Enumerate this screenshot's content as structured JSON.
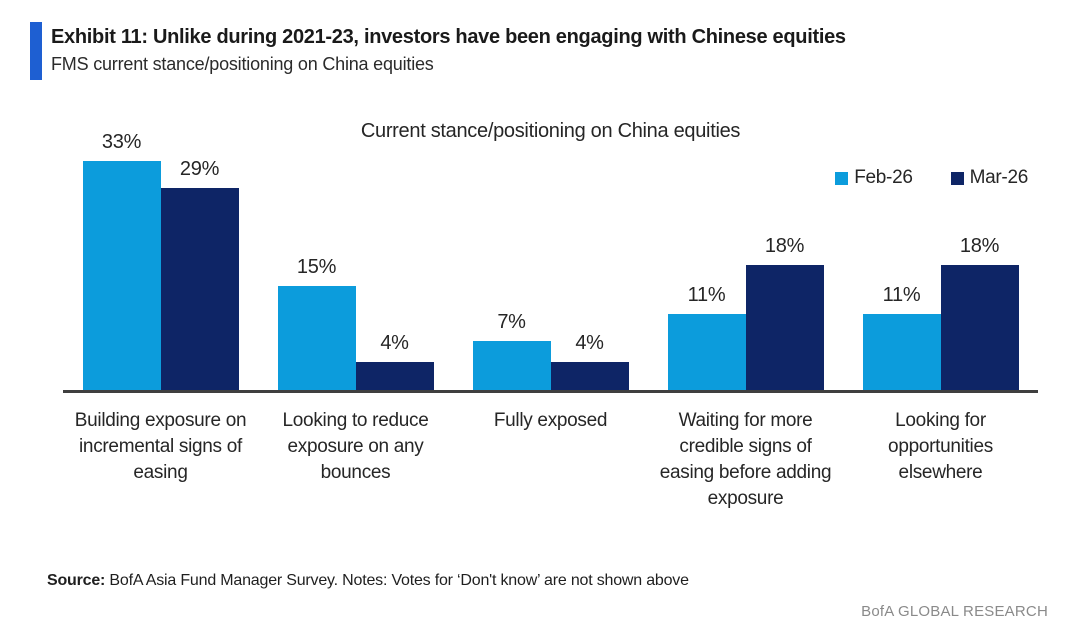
{
  "header": {
    "exhibit_title": "Exhibit 11: Unlike during 2021-23, investors have been engaging with Chinese equities",
    "subtitle": "FMS current stance/positioning on China equities"
  },
  "chart_data": {
    "type": "bar",
    "title": "Current stance/positioning on China equities",
    "categories": [
      "Building exposure on incremental signs of easing",
      "Looking to reduce exposure on any bounces",
      "Fully exposed",
      "Waiting for more credible signs of easing before adding exposure",
      "Looking for opportunities elsewhere"
    ],
    "series": [
      {
        "name": "Feb-26",
        "color": "#0c9cdc",
        "values": [
          33,
          15,
          7,
          11,
          11
        ]
      },
      {
        "name": "Mar-26",
        "color": "#0e2566",
        "values": [
          29,
          4,
          4,
          18,
          18
        ]
      }
    ],
    "value_suffix": "%",
    "ylim": [
      0,
      40
    ],
    "grid": false,
    "data_labels": true,
    "legend_position": "top-right",
    "axis_line_color": "#3f3f3f"
  },
  "footer": {
    "source_label": "Source:",
    "source_text": " BofA Asia Fund Manager Survey. Notes: Votes for ‘Don't know’ are not shown above",
    "watermark": "BofA GLOBAL RESEARCH"
  }
}
